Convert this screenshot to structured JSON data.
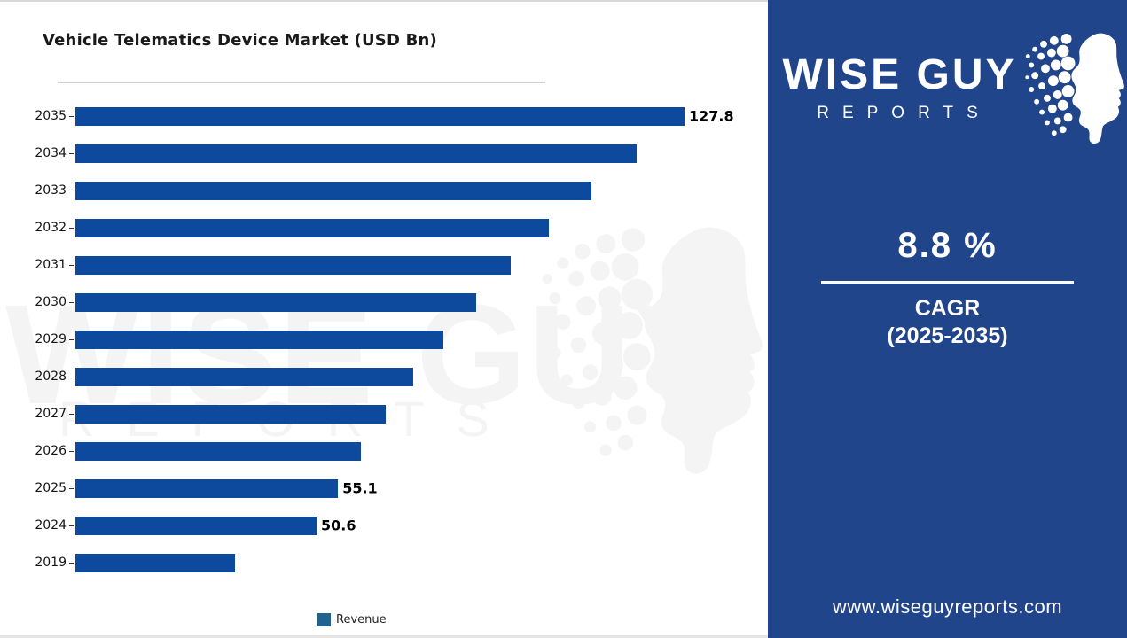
{
  "chart": {
    "title": "Vehicle Telematics Device Market (USD Bn)",
    "legend_label": "Revenue"
  },
  "chart_data": {
    "type": "bar",
    "orientation": "horizontal",
    "title": "Vehicle Telematics Device Market (USD Bn)",
    "unit": "USD Bn",
    "series_name": "Revenue",
    "categories": [
      "2035",
      "2034",
      "2033",
      "2032",
      "2031",
      "2030",
      "2029",
      "2028",
      "2027",
      "2026",
      "2025",
      "2024",
      "2019"
    ],
    "values": [
      127.8,
      117.7,
      108.2,
      99.4,
      91.4,
      84.0,
      77.2,
      70.9,
      65.2,
      59.9,
      55.1,
      50.6,
      33.5
    ],
    "value_labels": [
      "127.8",
      "",
      "",
      "",
      "",
      "",
      "",
      "",
      "",
      "",
      "55.1",
      "50.6",
      ""
    ],
    "xlabel": "",
    "ylabel": "",
    "xlim": [
      0,
      145
    ],
    "grid": false,
    "legend_position": "bottom center",
    "bar_color": "#0d4a9e",
    "legend_color": "#20638f"
  },
  "panel": {
    "logo_line1": "WISE GUY",
    "logo_line2": "REPORTS",
    "cagr_value": "8.8 %",
    "cagr_label": "CAGR",
    "cagr_range": "(2025-2035)",
    "website": "www.wiseguyreports.com",
    "background_color": "#21458a"
  },
  "watermark": {
    "line1": "WISE GUY",
    "line2": "REPORTS"
  }
}
